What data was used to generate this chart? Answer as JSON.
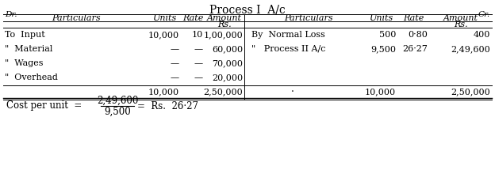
{
  "title": "Process I  A/c",
  "dr_label": "Dr.",
  "cr_label": "Cr.",
  "header_left": [
    "Particulars",
    "Units",
    "Rate",
    "Amount",
    "Rs."
  ],
  "header_right": [
    "Particulars",
    "Units",
    "Rate",
    "Amount",
    "Rs."
  ],
  "rows_left": [
    [
      "To  Input",
      "10,000",
      "10",
      "1,00,000"
    ],
    [
      "\"  Material",
      "—",
      "—",
      "60,000"
    ],
    [
      "\"  Wages",
      "—",
      "—",
      "70,000"
    ],
    [
      "\"  Overhead",
      "—",
      "—",
      "20,000"
    ]
  ],
  "rows_right": [
    [
      "By  Normal Loss",
      "500",
      "0·80",
      "400"
    ],
    [
      "\"   Process II A/c",
      "9,500",
      "26·27",
      "2,49,600"
    ],
    [
      "",
      "",
      "",
      ""
    ],
    [
      "",
      "",
      "",
      ""
    ]
  ],
  "total_left": [
    "",
    "10,000",
    "",
    "2,50,000"
  ],
  "total_right": [
    "",
    "10,000",
    "",
    "2,50,000"
  ],
  "footer_num": "2,49,600",
  "footer_den": "9,500",
  "footer_result": "Rs.  26·27",
  "bg_color": "#ffffff",
  "text_color": "#000000",
  "font_size": 8.0
}
